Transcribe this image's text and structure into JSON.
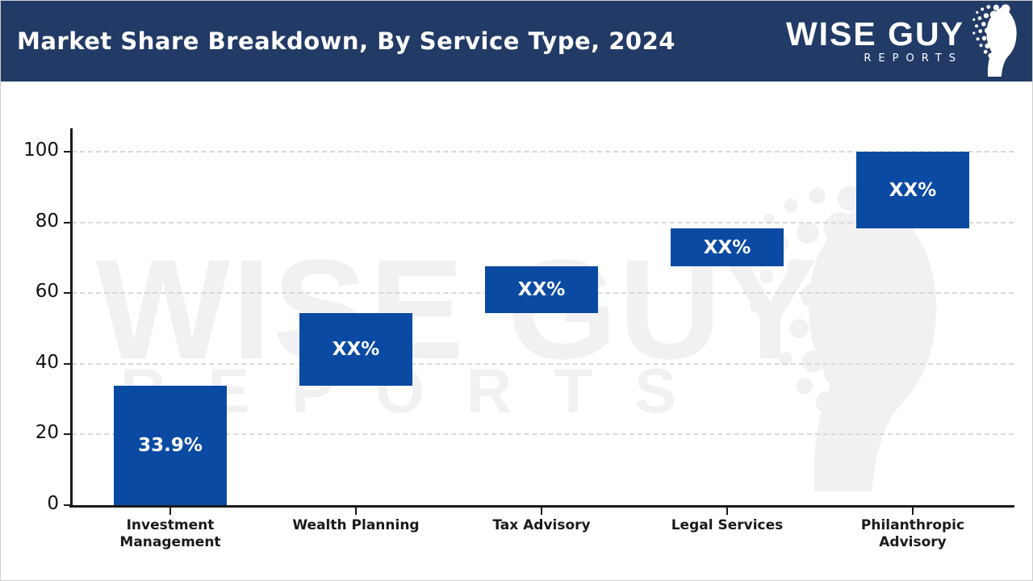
{
  "header": {
    "title": "Market Share Breakdown, By Service Type, 2024",
    "logo": {
      "line1": "WISE GUY",
      "line2": "REPORTS"
    }
  },
  "watermark": {
    "line1": "WISE GUY",
    "line2": "REPORTS"
  },
  "colors": {
    "header_bg": "#223A66",
    "bar": "#0B4AA2",
    "axis": "#1A1A1A",
    "gridline": "#D9D9D9",
    "bar_label_text": "#FFFFFF",
    "watermark": "#F1F1F4"
  },
  "chart_data": {
    "type": "bar",
    "subtype": "waterfall",
    "title": "Market Share Breakdown, By Service Type, 2024",
    "categories": [
      "Investment Management",
      "Wealth Planning",
      "Tax Advisory",
      "Legal Services",
      "Philanthropic Advisory"
    ],
    "bars": [
      {
        "category_lines": [
          "Investment",
          "Management"
        ],
        "start": 0,
        "end": 33.9,
        "value": 33.9,
        "label": "33.9%"
      },
      {
        "category_lines": [
          "Wealth Planning"
        ],
        "start": 33.9,
        "end": 54.3,
        "value": 20.4,
        "label": "XX%"
      },
      {
        "category_lines": [
          "Tax Advisory"
        ],
        "start": 54.3,
        "end": 67.6,
        "value": 13.3,
        "label": "XX%"
      },
      {
        "category_lines": [
          "Legal Services"
        ],
        "start": 67.6,
        "end": 78.2,
        "value": 10.6,
        "label": "XX%"
      },
      {
        "category_lines": [
          "Philanthropic",
          "Advisory"
        ],
        "start": 78.2,
        "end": 100,
        "value": 21.8,
        "label": "XX%"
      }
    ],
    "yticks": [
      0,
      20,
      40,
      60,
      80,
      100
    ],
    "ylim": [
      0,
      107
    ],
    "ylabel": "",
    "xlabel": "",
    "grid": "dashed-horizontal",
    "legend": "none",
    "bar_color": "#0B4AA2"
  }
}
